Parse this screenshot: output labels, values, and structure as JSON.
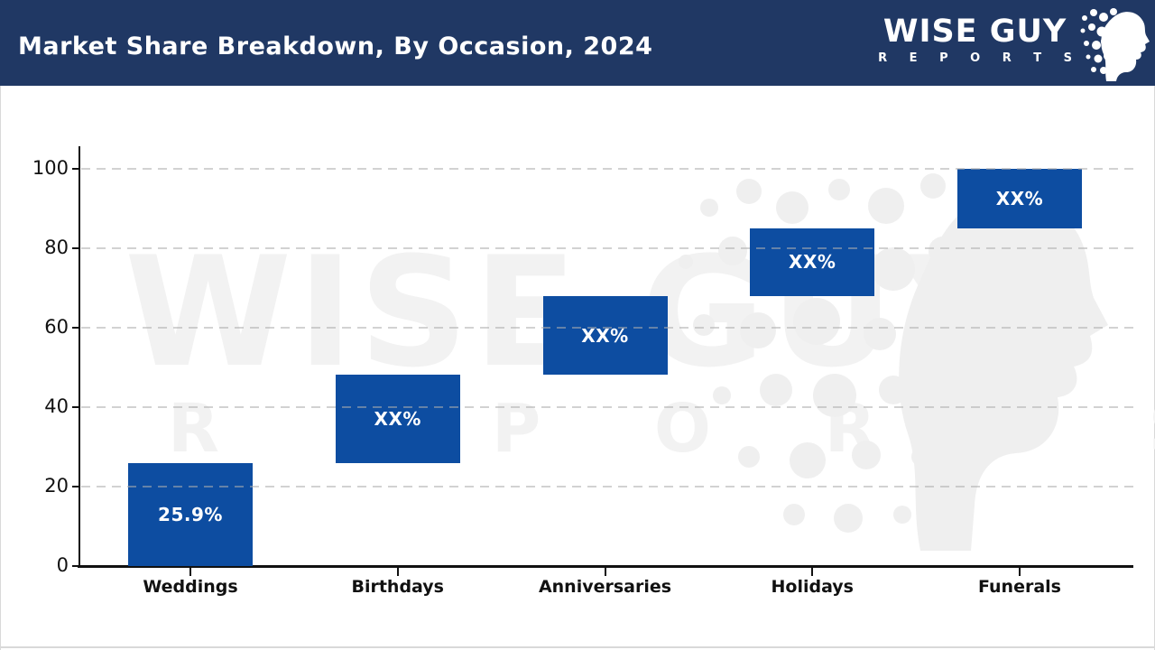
{
  "header": {
    "title": "Market Share Breakdown, By Occasion, 2024",
    "bg_color": "#203864",
    "logo": {
      "line1": "WISE GUY",
      "line2": "R E P O R T S"
    }
  },
  "watermark": {
    "line1": "WISE GUY",
    "line2": "R E P O R T S"
  },
  "chart_data": {
    "type": "bar",
    "subtype": "waterfall",
    "title": "Market Share Breakdown, By Occasion, 2024",
    "categories": [
      "Weddings",
      "Birthdays",
      "Anniversaries",
      "Holidays",
      "Funerals"
    ],
    "segment_starts": [
      0,
      25.9,
      48.2,
      67.9,
      85.1
    ],
    "segment_ends": [
      25.9,
      48.2,
      67.9,
      85.1,
      100
    ],
    "bar_labels": [
      "25.9%",
      "XX%",
      "XX%",
      "XX%",
      "XX%"
    ],
    "xlabel": "",
    "ylabel": "",
    "ylim": [
      0,
      100
    ],
    "yticks": [
      0,
      20,
      40,
      60,
      80,
      100
    ],
    "grid": "horizontal-dashed-over-bars",
    "legend": "none",
    "bar_color": "#0d4da1",
    "label_color": "#ffffff"
  }
}
